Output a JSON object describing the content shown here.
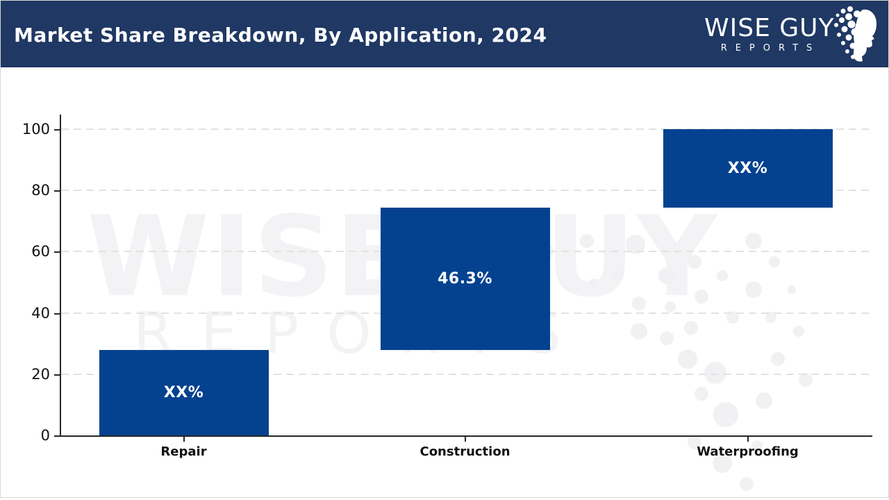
{
  "header": {
    "title": "Market Share Breakdown, By Application, 2024",
    "bg_color": "#1F3864",
    "logo": {
      "line1": "WISE GUY",
      "line2": "REPORTS"
    }
  },
  "watermark": {
    "line1": "WISE GUY",
    "line2": "REPORTS"
  },
  "chart_data": {
    "type": "bar",
    "subtype": "floating-segment-waterfall",
    "title": "Market Share Breakdown, By Application, 2024",
    "categories": [
      "Repair",
      "Construction",
      "Waterproofing"
    ],
    "series": [
      {
        "name": "Market Share (%)",
        "segments": [
          {
            "category": "Repair",
            "start": 0,
            "end": 28,
            "value_label": "XX%"
          },
          {
            "category": "Construction",
            "start": 28,
            "end": 74.3,
            "value_label": "46.3%"
          },
          {
            "category": "Waterproofing",
            "start": 74.3,
            "end": 100,
            "value_label": "XX%"
          }
        ]
      }
    ],
    "values": [
      28,
      46.3,
      25.7
    ],
    "bar_labels": [
      "XX%",
      "46.3%",
      "XX%"
    ],
    "xlabel": "",
    "ylabel": "",
    "ylim": [
      0,
      100
    ],
    "yticks": [
      0,
      20,
      40,
      60,
      80,
      100
    ],
    "grid": "horizontal-dashed",
    "legend": "none",
    "bar_color": "#04428F",
    "bar_label_color": "#ffffff",
    "axis_color": "#262626",
    "gridline_color": "#e2e2e2"
  }
}
